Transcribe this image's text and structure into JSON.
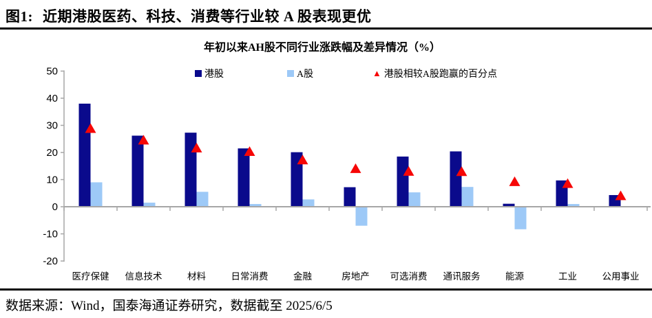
{
  "header": {
    "fig_label": "图1:",
    "title": "近期港股医药、科技、消费等行业较 A 股表现更优"
  },
  "footer": {
    "source": "数据来源：Wind，国泰海通证券研究，数据截至 2025/6/5"
  },
  "colors": {
    "hk_bar": "#0a0a8c",
    "a_bar": "#9dc9f7",
    "diff_marker": "#f60606",
    "axis": "#a6a6a6",
    "text": "#000000"
  },
  "chart_data": {
    "type": "bar",
    "title": "年初以来AH股不同行业涨跌幅及差异情况（%）",
    "xlabel": "",
    "ylabel": "",
    "ylim": [
      -20,
      50
    ],
    "ytick_step": 10,
    "grid": false,
    "legend_position": "top",
    "categories": [
      "医疗保健",
      "信息技术",
      "材料",
      "日常消费",
      "金融",
      "房地产",
      "可选消费",
      "通讯服务",
      "能源",
      "工业",
      "公用事业"
    ],
    "series": [
      {
        "name": "港股",
        "marker": "bar",
        "color": "#0a0a8c",
        "values": [
          38.0,
          26.2,
          27.3,
          21.5,
          20.1,
          7.2,
          18.5,
          20.4,
          1.1,
          9.7,
          4.3
        ]
      },
      {
        "name": "A股",
        "marker": "bar",
        "color": "#9dc9f7",
        "values": [
          9.0,
          1.5,
          5.5,
          1.0,
          2.7,
          -7.0,
          5.3,
          7.3,
          -8.3,
          1.0,
          0.1
        ]
      },
      {
        "name": "港股相较A股跑赢的百分点",
        "marker": "triangle",
        "color": "#f60606",
        "values": [
          29.0,
          24.7,
          21.8,
          20.5,
          17.4,
          14.2,
          13.2,
          13.1,
          9.4,
          8.7,
          4.2
        ]
      }
    ]
  }
}
